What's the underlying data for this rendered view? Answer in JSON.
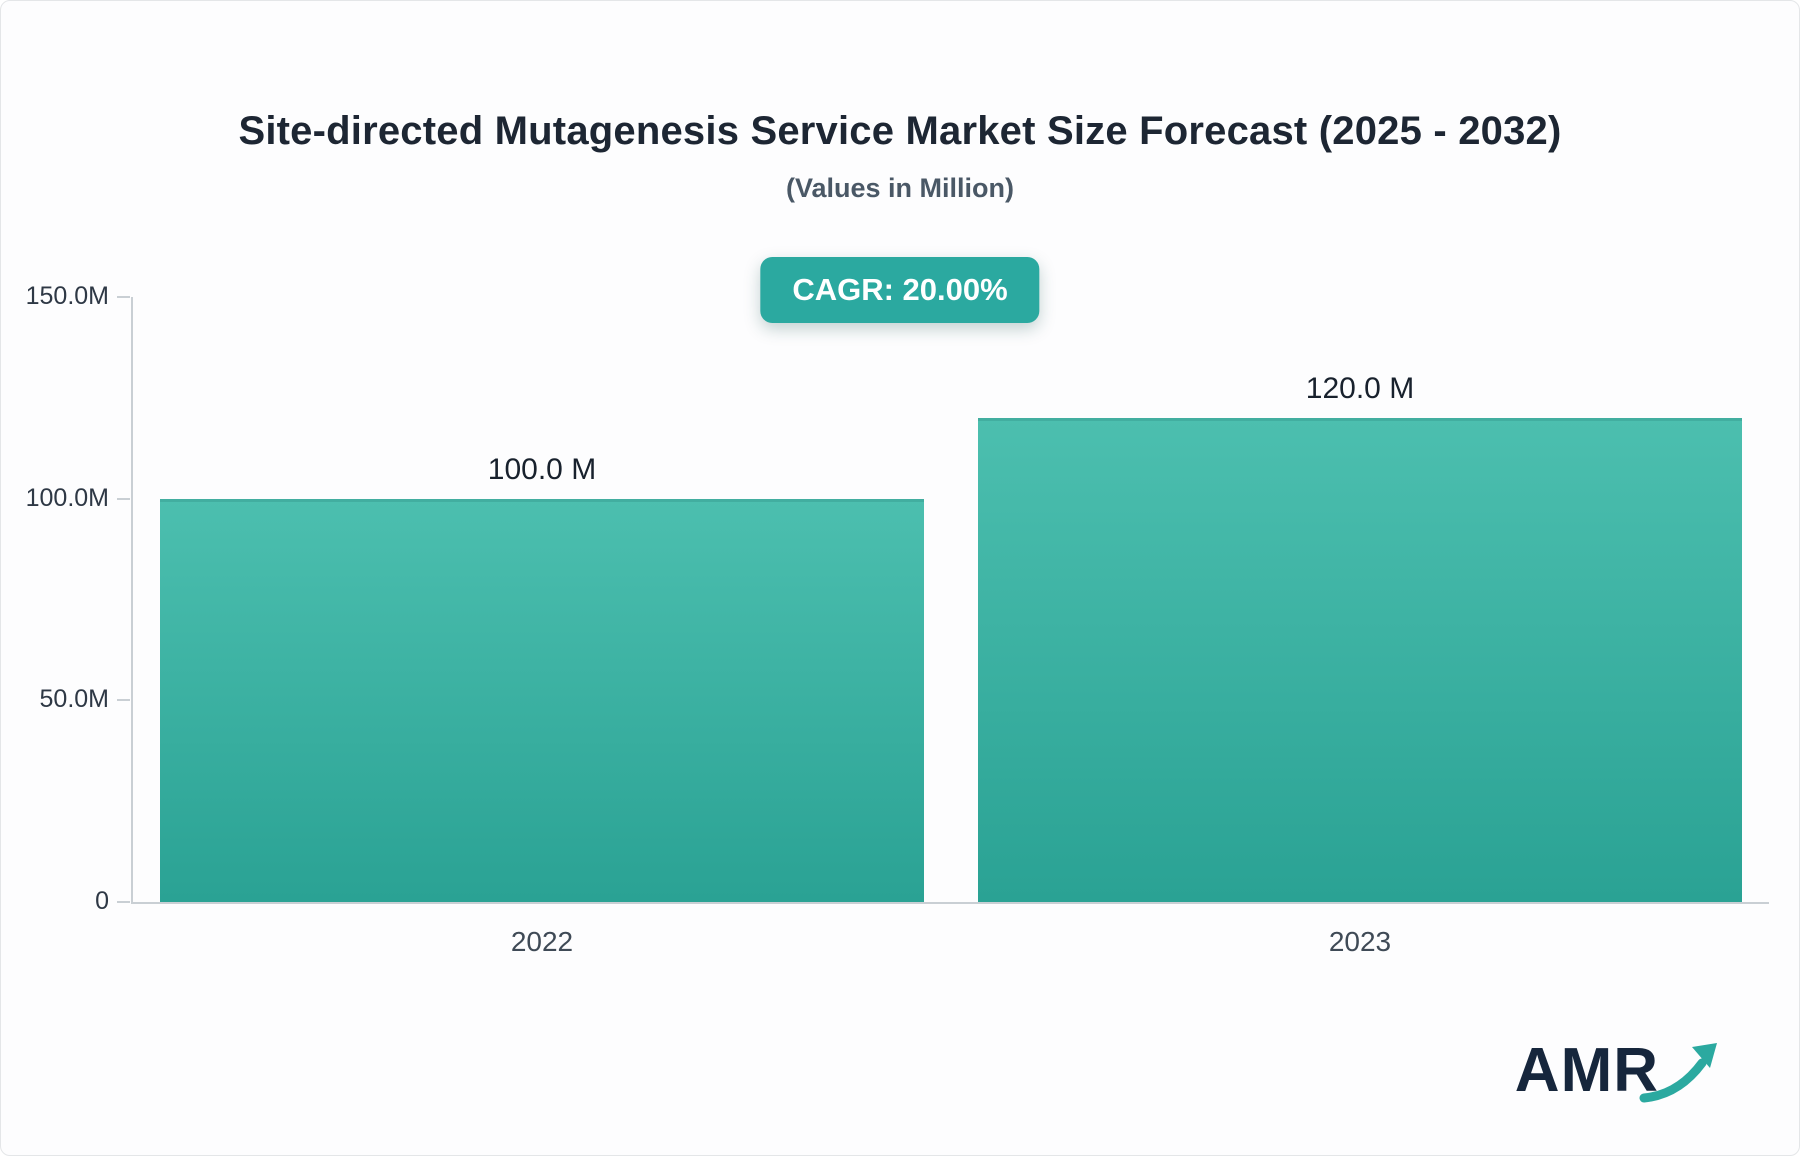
{
  "chart": {
    "title": "Site-directed Mutagenesis Service Market Size Forecast (2025 - 2032)",
    "subtitle": "(Values in Million)",
    "cagr_badge": "CAGR: 20.00%"
  },
  "chart_data": {
    "type": "bar",
    "categories": [
      "2022",
      "2023"
    ],
    "values": [
      100.0,
      120.0
    ],
    "value_labels": [
      "100.0 M",
      "120.0 M"
    ],
    "title": "Site-directed Mutagenesis Service Market Size Forecast (2025 - 2032)",
    "subtitle": "(Values in Million)",
    "xlabel": "",
    "ylabel": "",
    "unit": "Million",
    "ylim": [
      0,
      150
    ],
    "yticks": [
      0,
      50,
      100,
      150
    ],
    "ytick_labels": [
      "0",
      "50.0M",
      "100.0M",
      "150.0M"
    ],
    "grid": false,
    "legend": false,
    "annotations": [
      "CAGR: 20.00%"
    ]
  },
  "logo": {
    "text": "AMR",
    "icon": "growth-arrow-icon"
  },
  "colors": {
    "accent": "#2BA9A0",
    "bar_top": "#4CBFAF",
    "bar_bottom": "#2AA294",
    "title": "#1D2633",
    "subtitle": "#4A5866",
    "axis": "#C9CFD4",
    "logo": "#16263C"
  }
}
